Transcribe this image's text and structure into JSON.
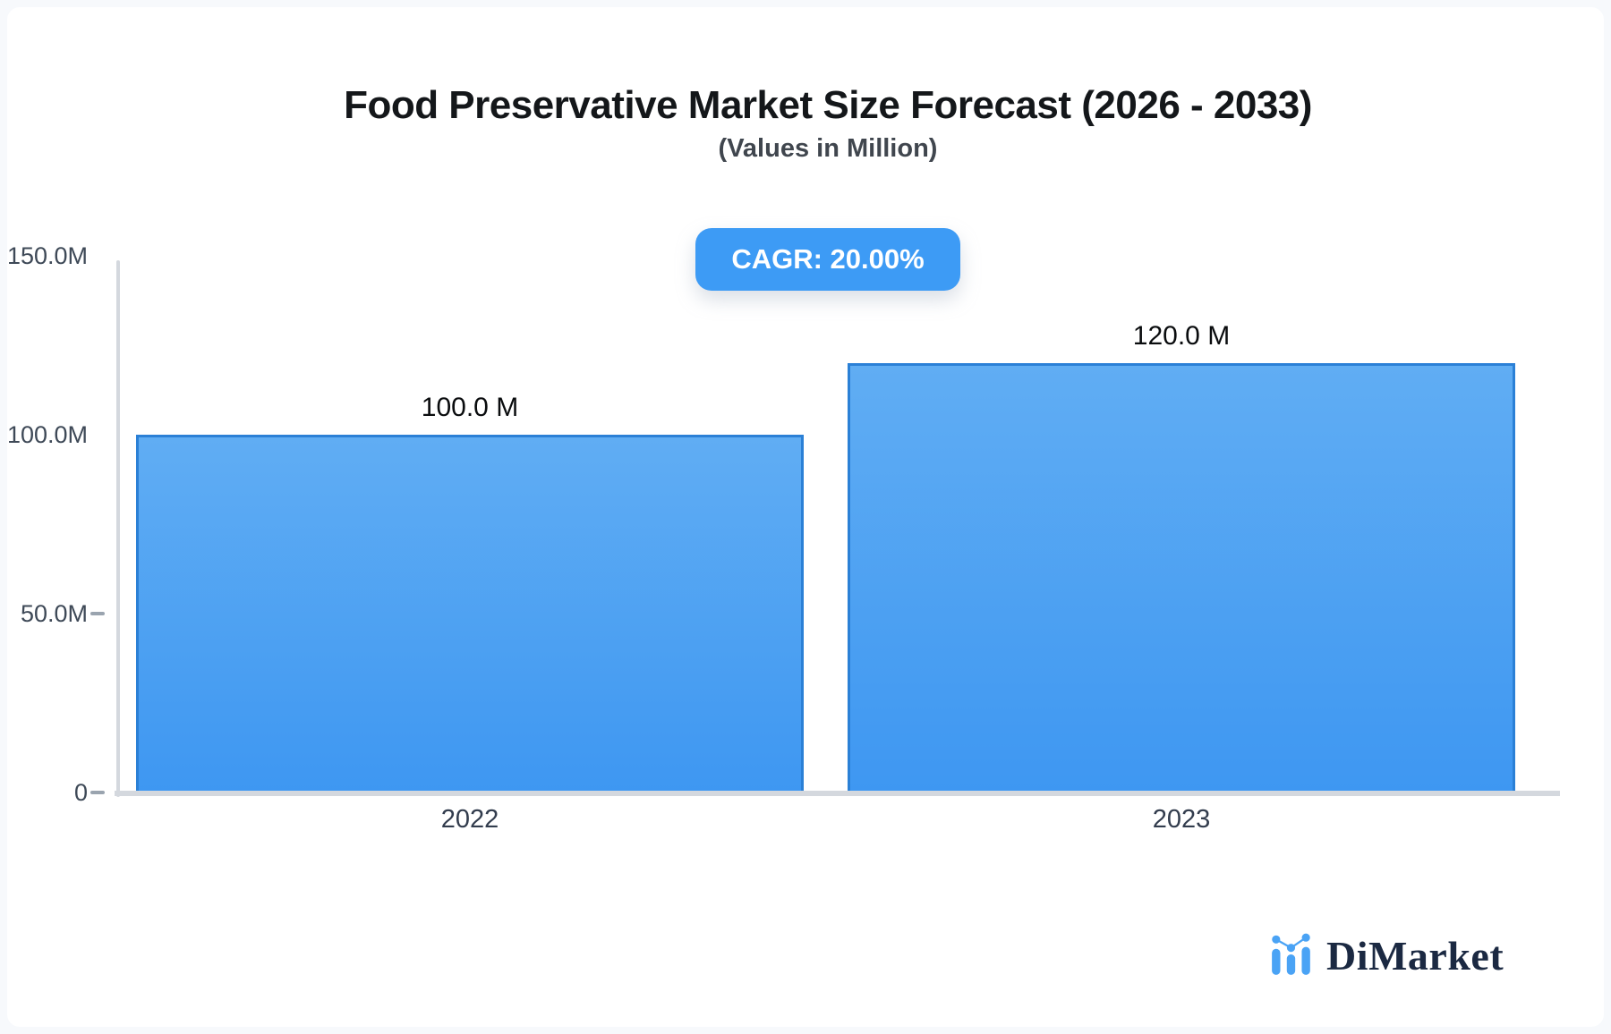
{
  "header": {
    "title": "Food Preservative Market Size Forecast (2026 - 2033)",
    "subtitle": "(Values in Million)",
    "cagr_badge": "CAGR: 20.00%"
  },
  "chart_data": {
    "type": "bar",
    "title": "Food Preservative Market Size Forecast (2026 - 2033)",
    "subtitle": "(Values in Million)",
    "cagr_label": "CAGR: 20.00%",
    "categories": [
      "2022",
      "2023"
    ],
    "values": [
      100,
      120
    ],
    "value_labels": [
      "100.0 M",
      "120.0 M"
    ],
    "unit": "Million",
    "xlabel": "",
    "ylabel": "",
    "ylim": [
      0,
      150
    ],
    "y_ticks": [
      {
        "label": "0",
        "value": 0,
        "dash": true
      },
      {
        "label": "50.0M",
        "value": 50,
        "dash": true
      },
      {
        "label": "100.0M",
        "value": 100,
        "dash": false
      },
      {
        "label": "150.0M",
        "value": 150,
        "dash": false
      }
    ],
    "legend": "none",
    "grid": "off"
  },
  "branding": {
    "logo_text": "DiMarket",
    "logo_icon": "bar-chart-sparkline-icon"
  },
  "colors": {
    "page_bg": "#f7f9fc",
    "card_bg": "#ffffff",
    "badge_bg": "#3d9bf5",
    "bar_top": "#60adf3",
    "bar_bottom": "#3e97f2",
    "bar_border": "#2b80d6",
    "axis": "#d4d8de",
    "logo_navy": "#1b2942",
    "logo_blue": "#4aa3f5"
  }
}
